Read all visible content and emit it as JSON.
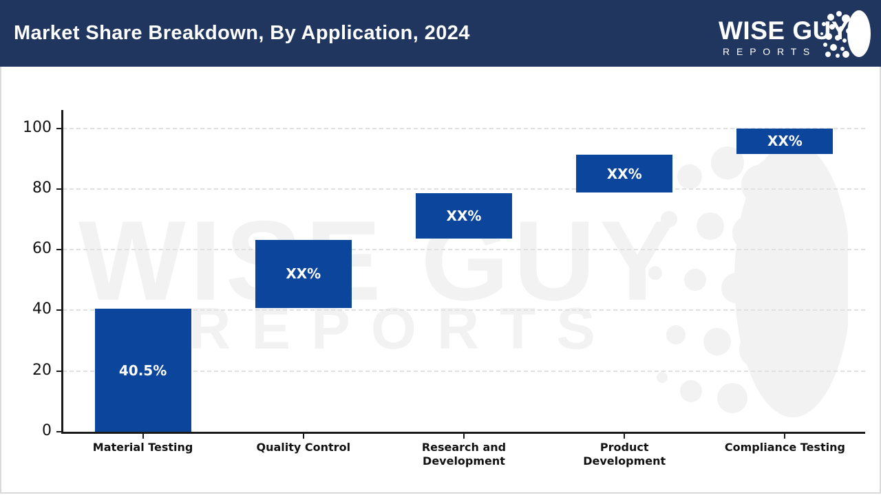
{
  "header": {
    "title": "Market Share Breakdown, By Application, 2024",
    "bg_color": "#21365f",
    "logo": {
      "brand": "WISE GUY",
      "tagline": "R E P O R T S"
    }
  },
  "watermark": {
    "brand": "WISE GUY",
    "tagline": "REPORTS"
  },
  "chart_data": {
    "type": "bar",
    "variant": "floating-waterfall",
    "title": "Market Share Breakdown, By Application, 2024",
    "categories": [
      "Material Testing",
      "Quality Control",
      "Research and Development",
      "Product Development",
      "Compliance Testing"
    ],
    "category_label_lines": [
      [
        "Material Testing"
      ],
      [
        "Quality Control"
      ],
      [
        "Research and",
        "Development"
      ],
      [
        "Product",
        "Development"
      ],
      [
        "Compliance Testing"
      ]
    ],
    "segments": [
      {
        "category": "Material Testing",
        "start": 0,
        "end": 40.5,
        "label": "40.5%"
      },
      {
        "category": "Quality Control",
        "start": 40.8,
        "end": 63.2,
        "label": "XX%"
      },
      {
        "category": "Research and Development",
        "start": 63.6,
        "end": 78.6,
        "label": "XX%"
      },
      {
        "category": "Product Development",
        "start": 78.8,
        "end": 91.3,
        "label": "XX%"
      },
      {
        "category": "Compliance Testing",
        "start": 91.5,
        "end": 100,
        "label": "XX%"
      }
    ],
    "xlabel": "",
    "ylabel": "",
    "ylim": [
      0,
      100
    ],
    "y_ticks": [
      0,
      20,
      40,
      60,
      80,
      100
    ],
    "grid": "horizontal-dashed",
    "legend": "none",
    "bar_color": "#0b459c",
    "bar_label_color": "#ffffff",
    "axis_color": "#1a1a1a",
    "grid_color": "#e0e0e0"
  }
}
